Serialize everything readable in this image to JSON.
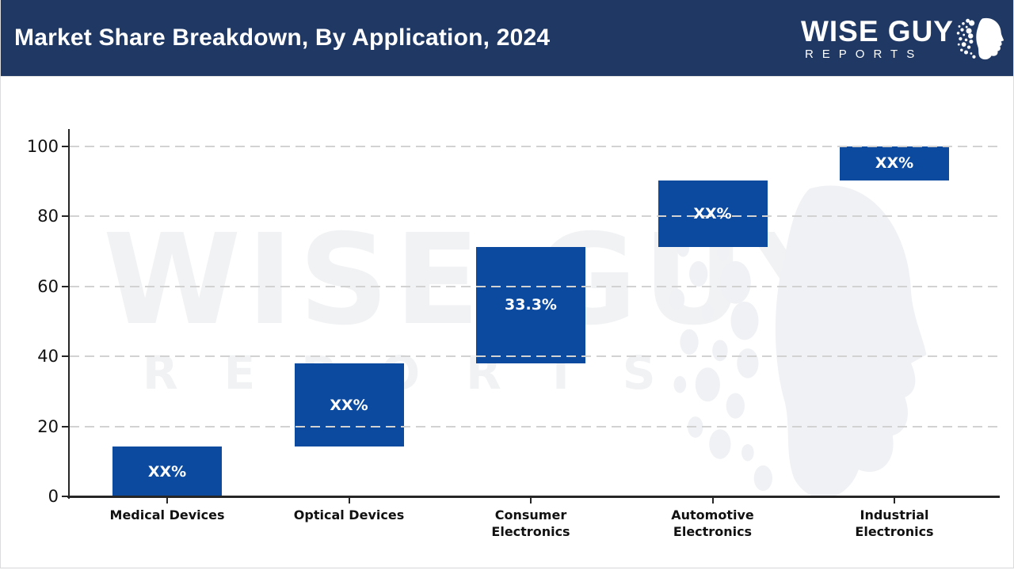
{
  "header": {
    "title": "Market Share Breakdown, By Application, 2024",
    "brand": {
      "name": "WISE GUY",
      "sub": "REPORTS"
    }
  },
  "watermark": {
    "name": "WISE GUY",
    "sub": "REPORTS"
  },
  "colors": {
    "header_bg": "#1f3864",
    "bar": "#0b4a9f",
    "bar_label": "#ffffff",
    "gridline": "#d2d2d2",
    "axis": "#262626",
    "watermark": "#f1f2f4"
  },
  "chart_data": {
    "type": "bar",
    "variant": "waterfall",
    "title": "Market Share Breakdown, By Application, 2024",
    "xlabel": "",
    "ylabel": "",
    "ylim": [
      0,
      106
    ],
    "yticks": [
      0,
      20,
      40,
      60,
      80,
      100
    ],
    "grid": "horizontal-dashed, drawn over bars",
    "legend": "none",
    "categories": [
      "Medical Devices",
      "Optical Devices",
      "Consumer Electronics",
      "Automotive Electronics",
      "Industrial Electronics"
    ],
    "segments": [
      {
        "category": "Medical Devices",
        "label": "XX%",
        "start": 0,
        "end": 14.2,
        "size_est": 14.2
      },
      {
        "category": "Optical Devices",
        "label": "XX%",
        "start": 14.2,
        "end": 38.0,
        "size_est": 23.8
      },
      {
        "category": "Consumer Electronics",
        "label": "33.3%",
        "start": 38.0,
        "end": 71.3,
        "size_est": 33.3
      },
      {
        "category": "Automotive Electronics",
        "label": "XX%",
        "start": 71.3,
        "end": 90.3,
        "size_est": 19.0
      },
      {
        "category": "Industrial Electronics",
        "label": "XX%",
        "start": 90.3,
        "end": 100.0,
        "size_est": 9.7
      }
    ]
  }
}
